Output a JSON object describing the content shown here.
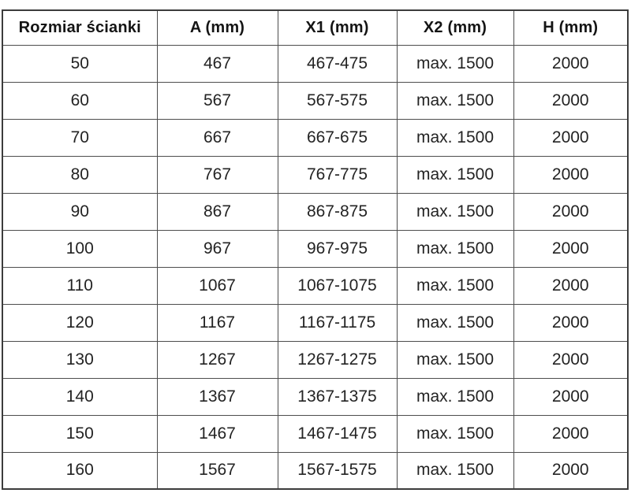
{
  "colors": {
    "background": "#ffffff",
    "table_border": "#3c3c3c",
    "cell_border": "#4d4d4d",
    "header_text": "#141414",
    "body_text": "#232323"
  },
  "table": {
    "columns": [
      "Rozmiar ścianki",
      "A (mm)",
      "X1 (mm)",
      "X2 (mm)",
      "H (mm)"
    ],
    "rows": [
      [
        "50",
        "467",
        "467-475",
        "max. 1500",
        "2000"
      ],
      [
        "60",
        "567",
        "567-575",
        "max. 1500",
        "2000"
      ],
      [
        "70",
        "667",
        "667-675",
        "max. 1500",
        "2000"
      ],
      [
        "80",
        "767",
        "767-775",
        "max. 1500",
        "2000"
      ],
      [
        "90",
        "867",
        "867-875",
        "max. 1500",
        "2000"
      ],
      [
        "100",
        "967",
        "967-975",
        "max. 1500",
        "2000"
      ],
      [
        "110",
        "1067",
        "1067-1075",
        "max. 1500",
        "2000"
      ],
      [
        "120",
        "1167",
        "1167-1175",
        "max. 1500",
        "2000"
      ],
      [
        "130",
        "1267",
        "1267-1275",
        "max. 1500",
        "2000"
      ],
      [
        "140",
        "1367",
        "1367-1375",
        "max. 1500",
        "2000"
      ],
      [
        "150",
        "1467",
        "1467-1475",
        "max. 1500",
        "2000"
      ],
      [
        "160",
        "1567",
        "1567-1575",
        "max. 1500",
        "2000"
      ]
    ]
  }
}
